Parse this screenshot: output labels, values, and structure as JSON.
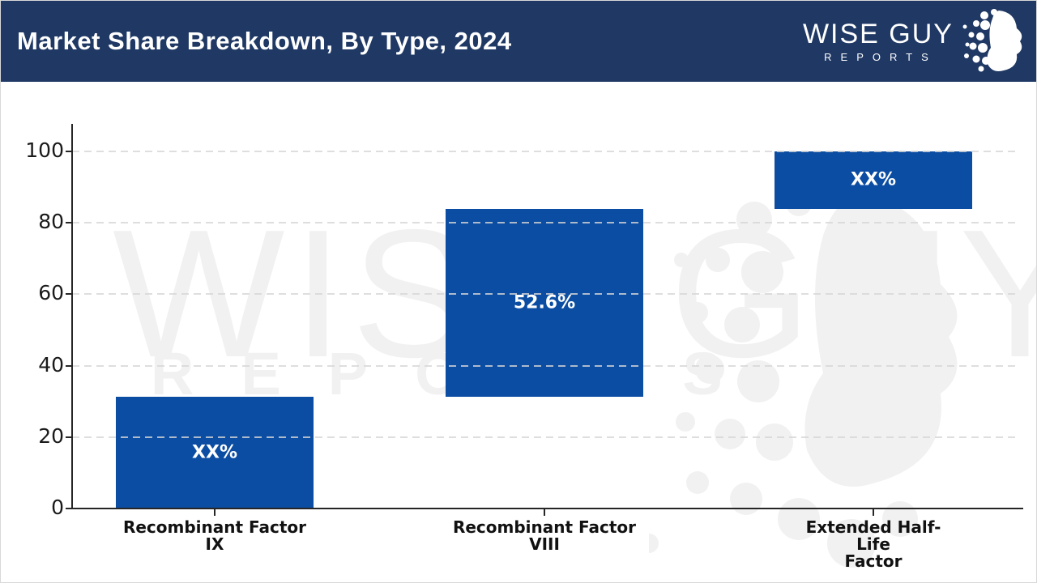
{
  "header": {
    "title": "Market Share Breakdown, By Type, 2024",
    "logo": {
      "line1": "WISE GUY",
      "line2": "REPORTS"
    }
  },
  "watermark": {
    "line1": "WISE GUY",
    "line2": "REPORTS"
  },
  "colors": {
    "header_bg": "#1F3864",
    "bar": "#0B4DA2",
    "axis": "#262626",
    "gridline": "#D6D6D6",
    "watermark": "#F1F1F1",
    "bar_label_text": "#FFFFFF",
    "title_text": "#FFFFFF"
  },
  "chart_data": {
    "type": "bar",
    "subtype": "waterfall",
    "title": "Market Share Breakdown, By Type, 2024",
    "xlabel": "",
    "ylabel": "",
    "ylim": [
      0,
      100
    ],
    "yticks": [
      0,
      20,
      40,
      60,
      80,
      100
    ],
    "grid": "horizontal-dashed",
    "legend": "none",
    "categories": [
      "Recombinant Factor IX",
      "Recombinant Factor VIII",
      "Extended Half-Life Factor"
    ],
    "category_label_lines": [
      [
        "Recombinant Factor",
        "IX"
      ],
      [
        "Recombinant Factor",
        "VIII"
      ],
      [
        "Extended Half-Life",
        "Factor"
      ]
    ],
    "bars": [
      {
        "category": "Recombinant Factor IX",
        "start": 0,
        "end": 31.4,
        "height": 31.4,
        "label": "XX%"
      },
      {
        "category": "Recombinant Factor VIII",
        "start": 31.4,
        "end": 84.0,
        "height": 52.6,
        "label": "52.6%"
      },
      {
        "category": "Extended Half-Life Factor",
        "start": 84.0,
        "end": 100.0,
        "height": 16.0,
        "label": "XX%"
      }
    ]
  }
}
